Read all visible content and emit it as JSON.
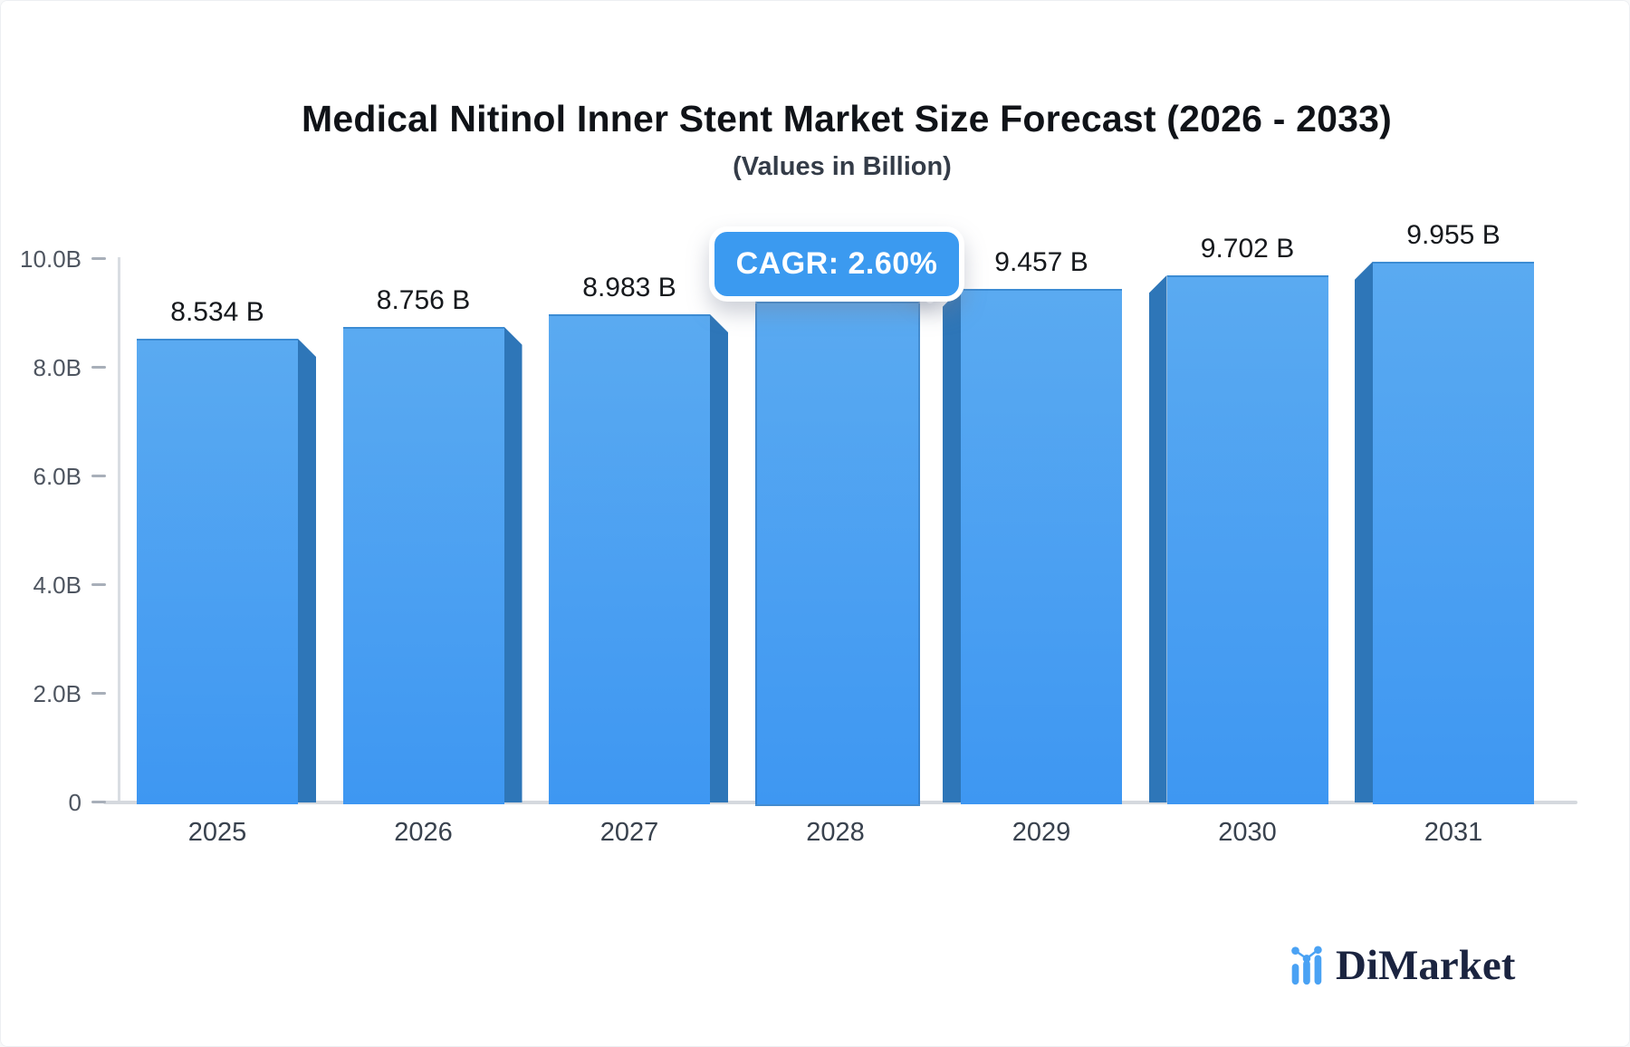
{
  "header": {
    "title": "Medical Nitinol Inner Stent Market Size Forecast (2026 - 2033)",
    "subtitle": "(Values in Billion)"
  },
  "cagr_badge": {
    "label": "CAGR: 2.60%",
    "color": "#3b9af0"
  },
  "chart_data": {
    "type": "bar",
    "title": "Medical Nitinol Inner Stent Market Size Forecast (2026 - 2033)",
    "subtitle": "(Values in Billion)",
    "unit": "Billion",
    "cagr": "2.60%",
    "categories": [
      "2025",
      "2026",
      "2027",
      "2028",
      "2029",
      "2030",
      "2031"
    ],
    "values": [
      8.534,
      8.756,
      8.983,
      9.217,
      9.457,
      9.702,
      9.955
    ],
    "value_labels": [
      "8.534 B",
      "8.756 B",
      "8.983 B",
      "",
      "9.457 B",
      "9.702 B",
      "9.955 B"
    ],
    "ylim": [
      0,
      10
    ],
    "y_ticks": [
      {
        "value": 10,
        "label": "10.0B"
      },
      {
        "value": 8,
        "label": "8.0B"
      },
      {
        "value": 6,
        "label": "6.0B"
      },
      {
        "value": 4,
        "label": "4.0B"
      },
      {
        "value": 2,
        "label": "2.0B"
      },
      {
        "value": 0,
        "label": "0"
      }
    ],
    "grid": false,
    "legend": false,
    "bar_color_top": "#5aaaf1",
    "bar_color_bottom": "#3e97f2",
    "bar_side_color": "#2e76b8"
  },
  "logo": {
    "text": "DiMarket",
    "icon": "bar-chart-logo-icon",
    "text_color": "#1b2440",
    "icon_color": "#4aa2f4"
  }
}
